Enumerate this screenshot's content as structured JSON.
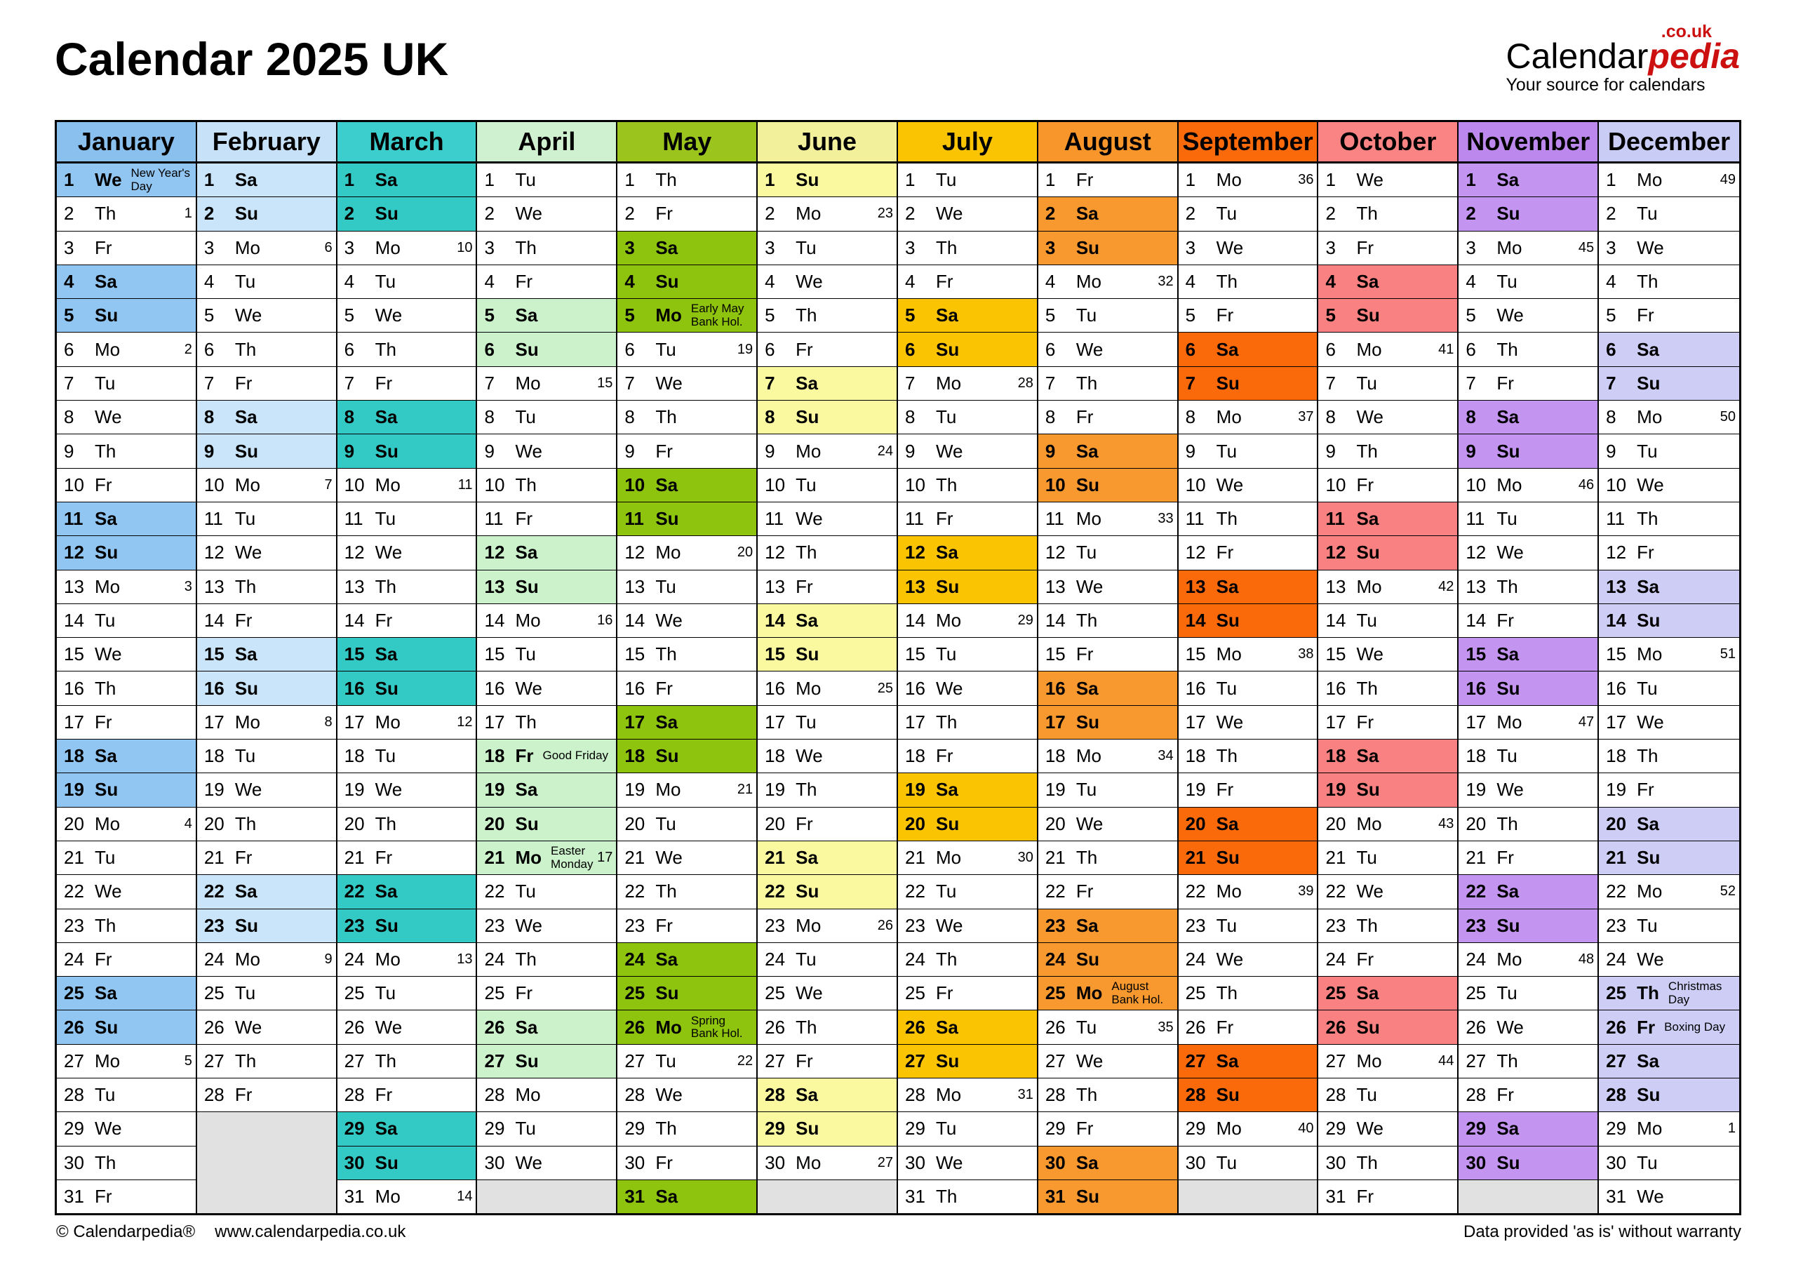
{
  "title": "Calendar 2025 UK",
  "logo": {
    "brand_black": "Calendar",
    "brand_red": "pedia",
    "domain": ".co.uk",
    "tagline": "Your source for calendars",
    "accent_color": "#CC1010"
  },
  "footer": {
    "copyright": "© Calendarpedia®",
    "url": "www.calendarpedia.co.uk",
    "disclaimer": "Data provided 'as is' without warranty"
  },
  "weekdays_cycle": [
    "Mo",
    "Tu",
    "We",
    "Th",
    "Fr",
    "Sa",
    "Su"
  ],
  "empty_cell_color": "#E1E1E1",
  "months": [
    {
      "name": "January",
      "header_color": "#8AC0EE",
      "weekend_color": "#92C6F2",
      "start_weekday": "We",
      "num_days": 31,
      "week_numbers": {
        "2": "1",
        "6": "2",
        "13": "3",
        "20": "4",
        "27": "5"
      },
      "holidays": {
        "1": "New Year's\nDay"
      }
    },
    {
      "name": "February",
      "header_color": "#C6E1F8",
      "weekend_color": "#CAE5FA",
      "start_weekday": "Sa",
      "num_days": 28,
      "week_numbers": {
        "3": "6",
        "10": "7",
        "17": "8",
        "24": "9"
      },
      "holidays": {}
    },
    {
      "name": "March",
      "header_color": "#3CCDCD",
      "weekend_color": "#33C9C4",
      "start_weekday": "Sa",
      "num_days": 31,
      "week_numbers": {
        "3": "10",
        "10": "11",
        "17": "12",
        "24": "13",
        "31": "14"
      },
      "holidays": {}
    },
    {
      "name": "April",
      "header_color": "#D0F1D0",
      "weekend_color": "#CCF2CC",
      "start_weekday": "Tu",
      "num_days": 30,
      "week_numbers": {
        "7": "15",
        "14": "16",
        "21": "17"
      },
      "holidays": {
        "18": "Good Friday",
        "21": "Easter\nMonday"
      }
    },
    {
      "name": "May",
      "header_color": "#9BC41C",
      "weekend_color": "#8EC40E",
      "start_weekday": "Th",
      "num_days": 31,
      "week_numbers": {
        "6": "19",
        "12": "20",
        "19": "21",
        "27": "22"
      },
      "holidays": {
        "5": "Early May\nBank Hol.",
        "26": "Spring\nBank Hol."
      }
    },
    {
      "name": "June",
      "header_color": "#F3F09B",
      "weekend_color": "#FAF9A0",
      "start_weekday": "Su",
      "num_days": 30,
      "week_numbers": {
        "2": "23",
        "9": "24",
        "16": "25",
        "23": "26",
        "30": "27"
      },
      "holidays": {}
    },
    {
      "name": "July",
      "header_color": "#FAC402",
      "weekend_color": "#FAC402",
      "start_weekday": "Tu",
      "num_days": 31,
      "week_numbers": {
        "7": "28",
        "14": "29",
        "21": "30",
        "28": "31"
      },
      "holidays": {}
    },
    {
      "name": "August",
      "header_color": "#F8952B",
      "weekend_color": "#F8992F",
      "start_weekday": "Fr",
      "num_days": 31,
      "week_numbers": {
        "4": "32",
        "11": "33",
        "18": "34",
        "26": "35"
      },
      "holidays": {
        "25": "August\nBank Hol."
      }
    },
    {
      "name": "September",
      "header_color": "#FA6A0B",
      "weekend_color": "#FA6A0B",
      "start_weekday": "Mo",
      "num_days": 30,
      "week_numbers": {
        "1": "36",
        "8": "37",
        "15": "38",
        "22": "39",
        "29": "40"
      },
      "holidays": {}
    },
    {
      "name": "October",
      "header_color": "#FA8383",
      "weekend_color": "#FA8181",
      "start_weekday": "We",
      "num_days": 31,
      "week_numbers": {
        "6": "41",
        "13": "42",
        "20": "43",
        "27": "44"
      },
      "holidays": {}
    },
    {
      "name": "November",
      "header_color": "#BD88ED",
      "weekend_color": "#C494F1",
      "start_weekday": "Sa",
      "num_days": 30,
      "week_numbers": {
        "3": "45",
        "10": "46",
        "17": "47",
        "24": "48"
      },
      "holidays": {}
    },
    {
      "name": "December",
      "header_color": "#C9CCF5",
      "weekend_color": "#CDCDF6",
      "start_weekday": "Mo",
      "num_days": 31,
      "week_numbers": {
        "1": "49",
        "8": "50",
        "15": "51",
        "22": "52",
        "29": "1"
      },
      "holidays": {
        "25": "Christmas\nDay",
        "26": "Boxing Day"
      }
    }
  ]
}
